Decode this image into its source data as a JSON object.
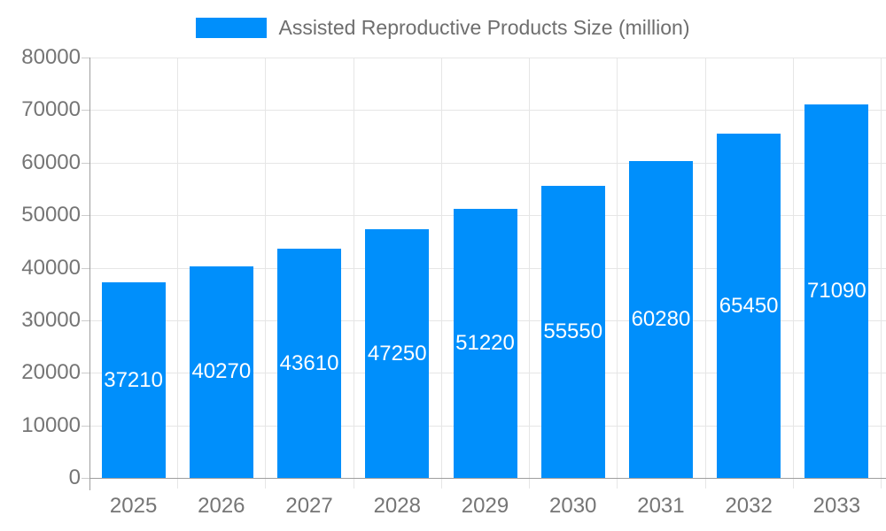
{
  "chart_data": {
    "type": "bar",
    "title": "",
    "categories": [
      "2025",
      "2026",
      "2027",
      "2028",
      "2029",
      "2030",
      "2031",
      "2032",
      "2033"
    ],
    "series": [
      {
        "name": "Assisted Reproductive Products Size (million)",
        "values": [
          37210,
          40270,
          43610,
          47250,
          51220,
          55550,
          60280,
          65450,
          71090
        ],
        "color": "#008ffb"
      }
    ],
    "xlabel": "",
    "ylabel": "",
    "ylim": [
      0,
      80000
    ],
    "ytick_step": 10000,
    "yticks": [
      "0",
      "10000",
      "20000",
      "30000",
      "40000",
      "50000",
      "60000",
      "70000",
      "80000"
    ],
    "bar_labels_visible": true,
    "legend_position": "top",
    "grid": true,
    "colors": {
      "bar": "#008ffb",
      "bar_label": "#ffffff",
      "axis_text": "#757575",
      "legend_text": "#6e6e6e",
      "gridline": "#e6e6e6",
      "tick": "#cccccc",
      "axis_line": "#9e9e9e",
      "background": "#ffffff"
    }
  }
}
